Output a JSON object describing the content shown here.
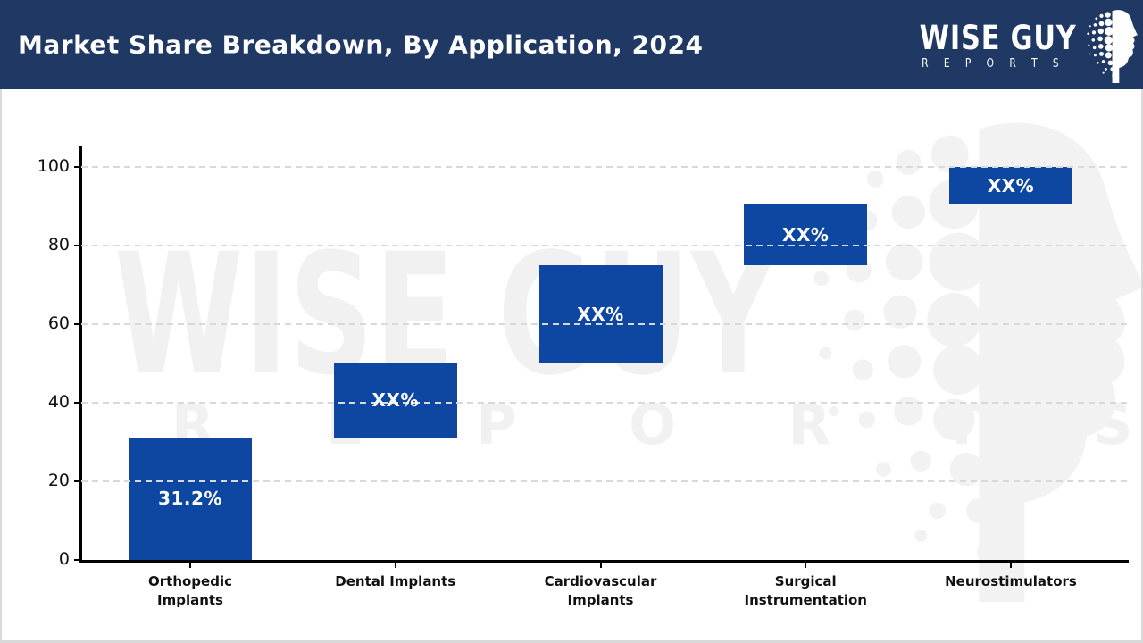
{
  "header": {
    "title": "Market Share Breakdown, By Application, 2024",
    "logo": {
      "line1": "WISE GUY",
      "line2": "R E P O R T S",
      "icon": "face-profile-dots-icon"
    }
  },
  "watermark": {
    "line1": "WISE GUY",
    "line2": "R E P O R T S",
    "icon": "face-profile-dots-icon"
  },
  "chart_data": {
    "type": "bar",
    "subtype": "waterfall",
    "title": "Market Share Breakdown, By Application, 2024",
    "categories": [
      "Orthopedic Implants",
      "Dental Implants",
      "Cardiovascular Implants",
      "Surgical Instrumentation",
      "Neurostimulators"
    ],
    "category_label_lines": [
      [
        "Orthopedic",
        "Implants"
      ],
      [
        "Dental Implants"
      ],
      [
        "Cardiovascular",
        "Implants"
      ],
      [
        "Surgical",
        "Instrumentation"
      ],
      [
        "Neurostimulators"
      ]
    ],
    "segments": [
      {
        "category": "Orthopedic Implants",
        "start": 0,
        "end": 31.2,
        "label": "31.2%"
      },
      {
        "category": "Dental Implants",
        "start": 31.2,
        "end": 50,
        "label": "XX%"
      },
      {
        "category": "Cardiovascular Implants",
        "start": 50,
        "end": 75,
        "label": "XX%"
      },
      {
        "category": "Surgical Instrumentation",
        "start": 75,
        "end": 90.6,
        "label": "XX%"
      },
      {
        "category": "Neurostimulators",
        "start": 90.6,
        "end": 100,
        "label": "XX%"
      }
    ],
    "xlabel": "",
    "ylabel": "",
    "ylim": [
      0,
      100
    ],
    "yticks": [
      0,
      20,
      40,
      60,
      80,
      100
    ],
    "grid": "horizontal-dashed-over-bars",
    "legend": "none",
    "bar_color": "#0d47a1",
    "bar_label_color": "#ffffff",
    "axis_color": "#000000",
    "gridline_color": "#d9d9d9"
  },
  "colors": {
    "header_bg": "#1f3864",
    "panel_bg": "#ffffff",
    "panel_border": "#d9d9d9",
    "watermark": "#f1f1f1"
  }
}
